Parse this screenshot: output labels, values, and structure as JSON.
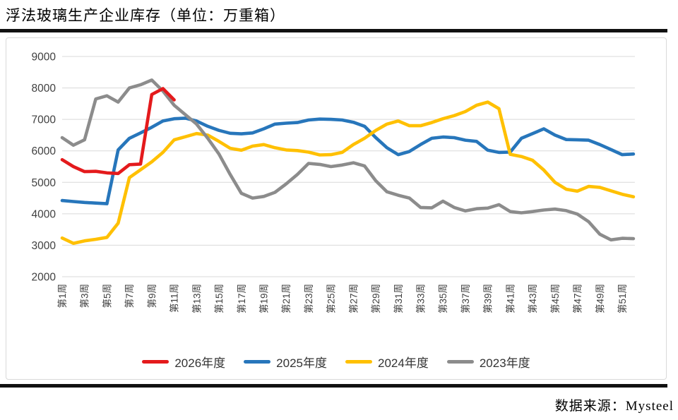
{
  "title": "浮法玻璃生产企业库存（单位：万重箱）",
  "source": "数据来源：Mysteel",
  "colors": {
    "grid": "#d9d9d9",
    "axis_text": "#404040",
    "series_2026": "#e41a1c",
    "series_2025": "#2776bb",
    "series_2024": "#ffc000",
    "series_2023": "#8c8c8c"
  },
  "chart_data": {
    "type": "line",
    "title": "浮法玻璃生产企业库存（单位：万重箱）",
    "xlabel": "",
    "ylabel": "",
    "ylim": [
      2000,
      9000
    ],
    "y_ticks": [
      9000,
      8000,
      7000,
      6000,
      5000,
      4000,
      3000,
      2000
    ],
    "total_weeks": 52,
    "grid": true,
    "legend_position": "bottom",
    "x_tick_labels": [
      "第1周",
      "第3周",
      "第5周",
      "第7周",
      "第9周",
      "第11周",
      "第13周",
      "第15周",
      "第17周",
      "第19周",
      "第21周",
      "第23周",
      "第25周",
      "第27周",
      "第29周",
      "第31周",
      "第33周",
      "第35周",
      "第37周",
      "第39周",
      "第41周",
      "第43周",
      "第45周",
      "第47周",
      "第49周",
      "第51周"
    ],
    "series": [
      {
        "name": "2026年度",
        "color": "#e41a1c",
        "start_week": 1,
        "values": [
          5720,
          5500,
          5340,
          5350,
          5300,
          5280,
          5560,
          5580,
          7790,
          7980,
          7620
        ]
      },
      {
        "name": "2025年度",
        "color": "#2776bb",
        "start_week": 1,
        "values": [
          4420,
          4390,
          4360,
          4340,
          4320,
          6030,
          6400,
          6570,
          6750,
          6950,
          7020,
          7040,
          6950,
          6780,
          6650,
          6560,
          6540,
          6570,
          6700,
          6850,
          6880,
          6900,
          6980,
          7010,
          7000,
          6980,
          6910,
          6780,
          6420,
          6100,
          5880,
          5980,
          6200,
          6400,
          6440,
          6420,
          6340,
          6300,
          6020,
          5950,
          5960,
          6400,
          6550,
          6700,
          6500,
          6360,
          6350,
          6340,
          6200,
          6040,
          5880,
          5900
        ]
      },
      {
        "name": "2024年度",
        "color": "#ffc000",
        "start_week": 1,
        "values": [
          3230,
          3060,
          3140,
          3190,
          3250,
          3700,
          5150,
          5400,
          5650,
          5950,
          6350,
          6450,
          6550,
          6500,
          6300,
          6080,
          6020,
          6150,
          6200,
          6100,
          6030,
          6010,
          5960,
          5870,
          5880,
          5950,
          6200,
          6400,
          6650,
          6850,
          6950,
          6800,
          6800,
          6900,
          7020,
          7120,
          7250,
          7450,
          7550,
          7340,
          5890,
          5820,
          5700,
          5390,
          5000,
          4780,
          4720,
          4870,
          4840,
          4730,
          4620,
          4540
        ]
      },
      {
        "name": "2023年度",
        "color": "#8c8c8c",
        "start_week": 1,
        "values": [
          6420,
          6180,
          6350,
          7650,
          7750,
          7550,
          8000,
          8100,
          8250,
          7900,
          7450,
          7150,
          6850,
          6400,
          5900,
          5250,
          4650,
          4500,
          4550,
          4680,
          4950,
          5250,
          5600,
          5570,
          5500,
          5550,
          5620,
          5520,
          5050,
          4700,
          4590,
          4500,
          4200,
          4190,
          4400,
          4200,
          4090,
          4160,
          4180,
          4290,
          4070,
          4030,
          4070,
          4120,
          4150,
          4100,
          3990,
          3750,
          3350,
          3170,
          3220,
          3210
        ]
      }
    ]
  }
}
